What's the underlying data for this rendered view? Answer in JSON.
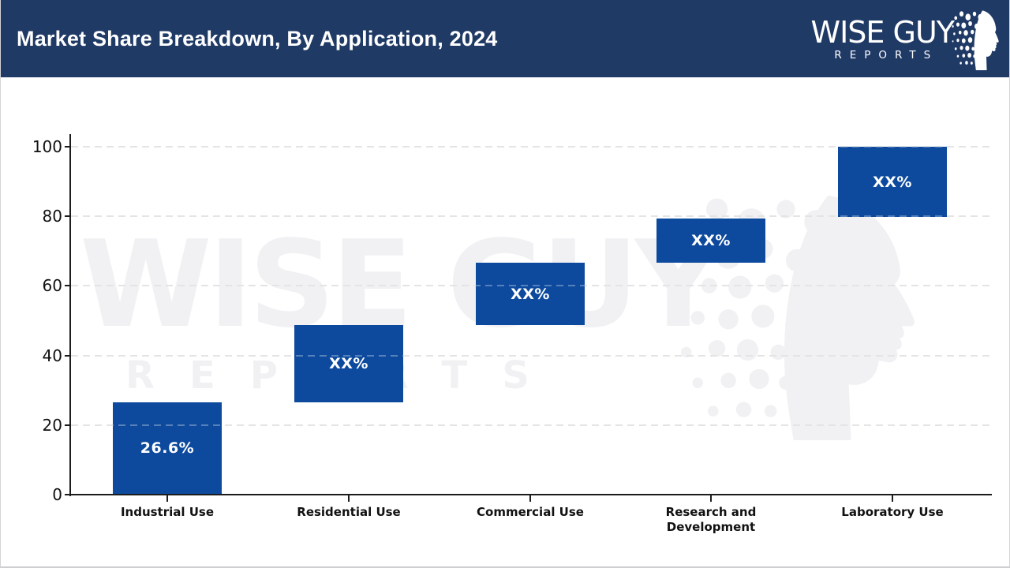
{
  "header": {
    "title": "Market Share Breakdown, By Application, 2024",
    "logo": {
      "line1": "WISE GUY",
      "line2": "REPORTS"
    },
    "background_color": "#203A66",
    "text_color": "#FFFFFF"
  },
  "watermark": {
    "line1": "WISE GUY",
    "line2": "REPORTS"
  },
  "chart_data": {
    "type": "bar",
    "subtype": "floating-waterfall",
    "title": "Market Share Breakdown, By Application, 2024",
    "xlabel": "",
    "ylabel": "",
    "ylim": [
      0,
      100
    ],
    "yticks": [
      0,
      20,
      40,
      60,
      80,
      100
    ],
    "grid": "dashed-horizontal",
    "categories": [
      "Industrial Use",
      "Residential Use",
      "Commercial Use",
      "Research and Development",
      "Laboratory Use"
    ],
    "segments": [
      {
        "category": "Industrial Use",
        "start": 0,
        "end": 26.6,
        "label": "26.6%"
      },
      {
        "category": "Residential Use",
        "start": 26.6,
        "end": 48.8,
        "label": "XX%"
      },
      {
        "category": "Commercial Use",
        "start": 48.8,
        "end": 66.6,
        "label": "XX%"
      },
      {
        "category": "Research and Development",
        "start": 66.6,
        "end": 79.4,
        "label": "XX%"
      },
      {
        "category": "Laboratory Use",
        "start": 79.8,
        "end": 100,
        "label": "XX%"
      }
    ],
    "bar_color": "#0D4A9D",
    "bar_label_color": "#FFFFFF",
    "gridline_color": "#D9D9D9",
    "axis_color": "#1C1C1C"
  }
}
